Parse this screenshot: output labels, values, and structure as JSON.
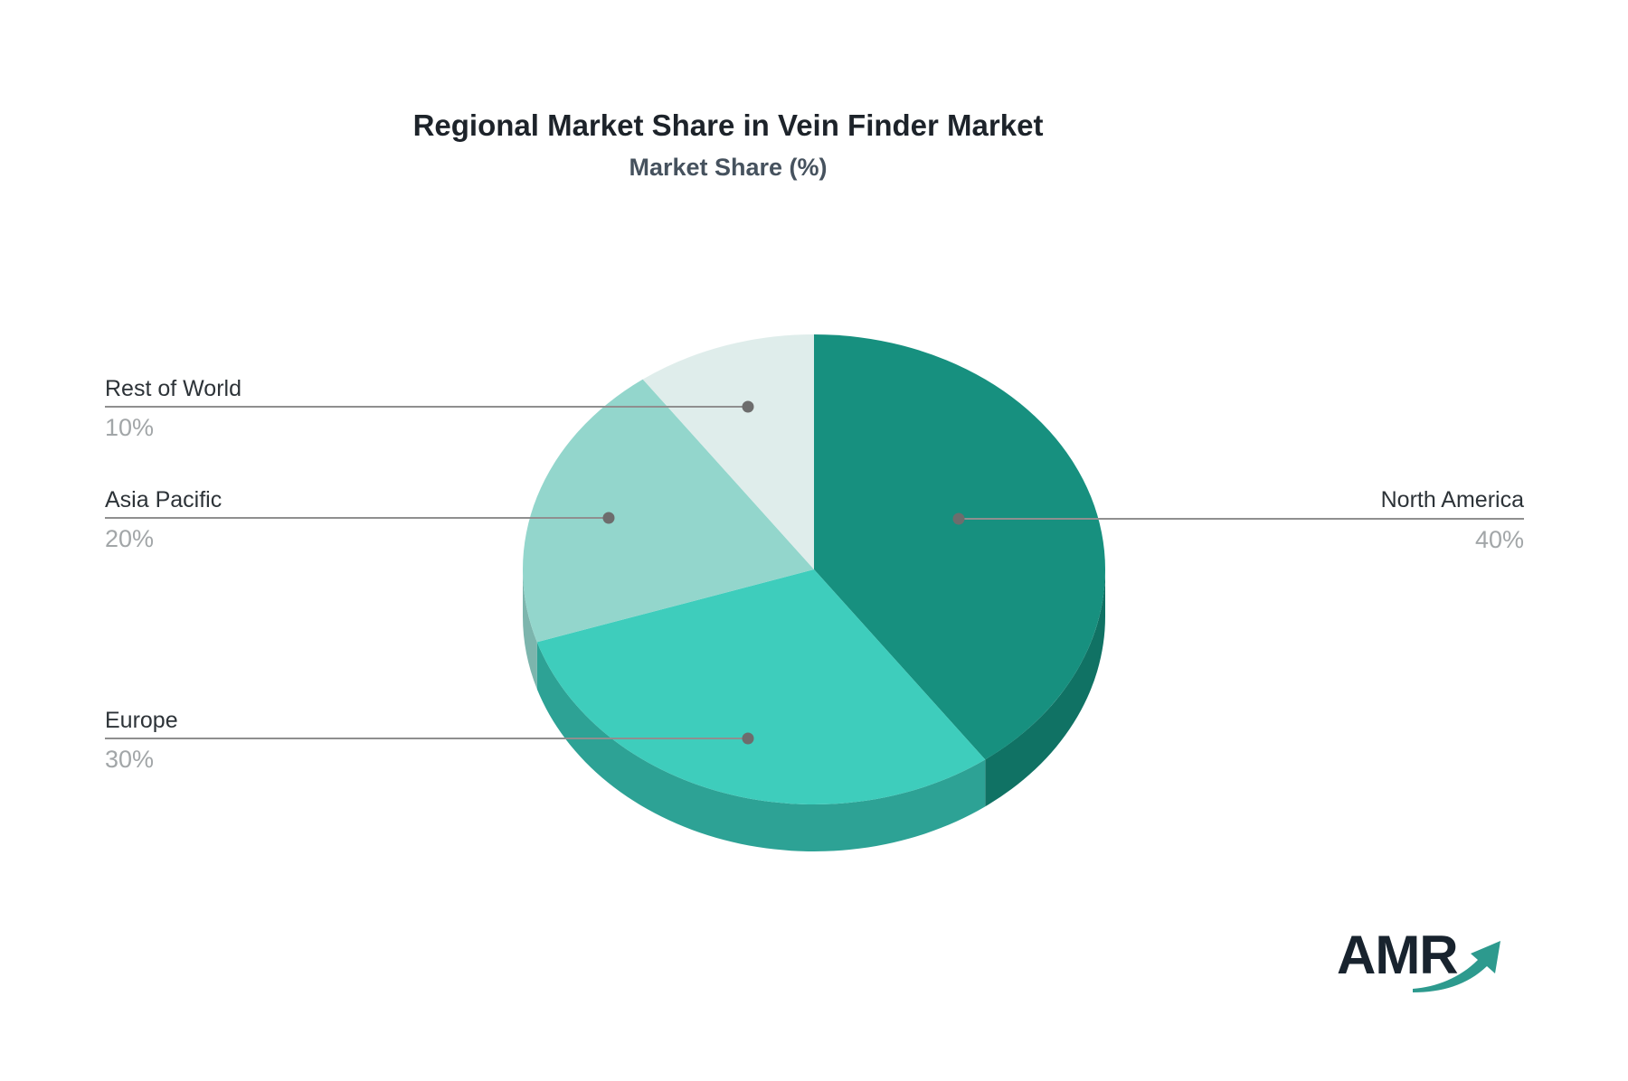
{
  "chart_data": {
    "type": "pie",
    "title": "Regional Market Share in Vein Finder Market",
    "subtitle": "Market Share (%)",
    "unit": "%",
    "effect": "3d",
    "direction": "clockwise",
    "start_angle": "12 o'clock",
    "legend_position": "none (callout labels)",
    "slices": [
      {
        "label": "North America",
        "value": 40,
        "pct_label": "40%",
        "color": "#17907f",
        "side_color": "#107264",
        "label_side": "right"
      },
      {
        "label": "Europe",
        "value": 30,
        "pct_label": "30%",
        "color": "#3ecdbc",
        "side_color": "#2da295",
        "label_side": "left"
      },
      {
        "label": "Asia Pacific",
        "value": 20,
        "pct_label": "20%",
        "color": "#93d6cc",
        "side_color": "#7cb5ad",
        "label_side": "left"
      },
      {
        "label": "Rest of World",
        "value": 10,
        "pct_label": "10%",
        "color": "#dfedeb",
        "side_color": "#c6d9d6",
        "label_side": "left"
      }
    ],
    "callout_line_color": "#8f8f8f",
    "callout_dot_color": "#6d6d6d",
    "title_color": "#1d232a",
    "subtitle_color": "#46525e"
  },
  "logo": {
    "text": "AMR",
    "arrow_color": "#2d9a8e",
    "text_color": "#18232e"
  }
}
